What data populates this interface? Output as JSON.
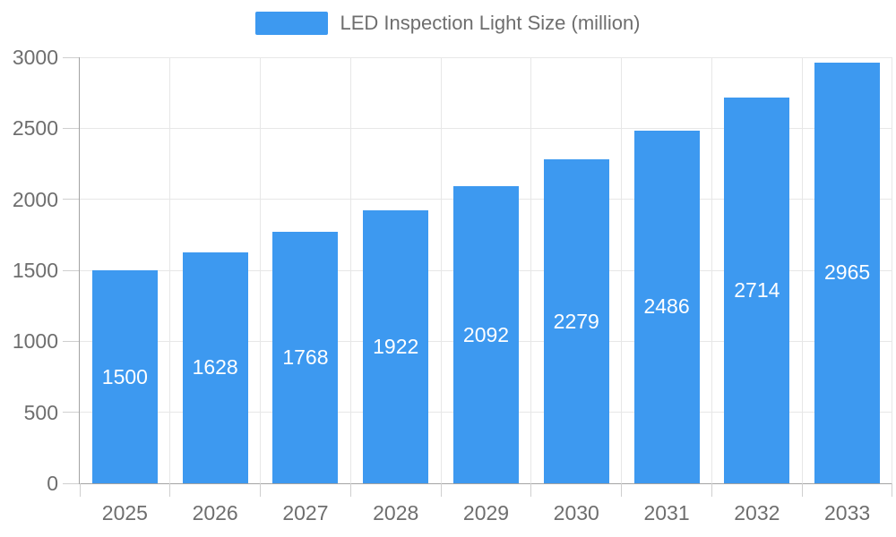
{
  "legend": {
    "label": "LED Inspection Light Size (million)"
  },
  "chart_data": {
    "type": "bar",
    "title": "LED Inspection Light Size (million)",
    "series_name": "LED Inspection Light Size (million)",
    "categories": [
      "2025",
      "2026",
      "2027",
      "2028",
      "2029",
      "2030",
      "2031",
      "2032",
      "2033"
    ],
    "values": [
      1500,
      1628,
      1768,
      1922,
      2092,
      2279,
      2486,
      2714,
      2965
    ],
    "bar_labels": [
      "1500",
      "1628",
      "1768",
      "1922",
      "2092",
      "2279",
      "2486",
      "2714",
      "2965"
    ],
    "xlabel": "",
    "ylabel": "",
    "ylim": [
      0,
      3000
    ],
    "y_ticks": [
      "0",
      "500",
      "1000",
      "1500",
      "2000",
      "2500",
      "3000"
    ],
    "grid": true,
    "legend_position": "top-center",
    "colors": {
      "bar": "#3D99F0",
      "grid": "#E7E7E7",
      "axis": "#A3A3A3",
      "tick": "#CFCFCF",
      "axis_text": "#6E6E6E",
      "bar_label_text": "#FFFFFF",
      "background": "#FFFFFF"
    }
  }
}
